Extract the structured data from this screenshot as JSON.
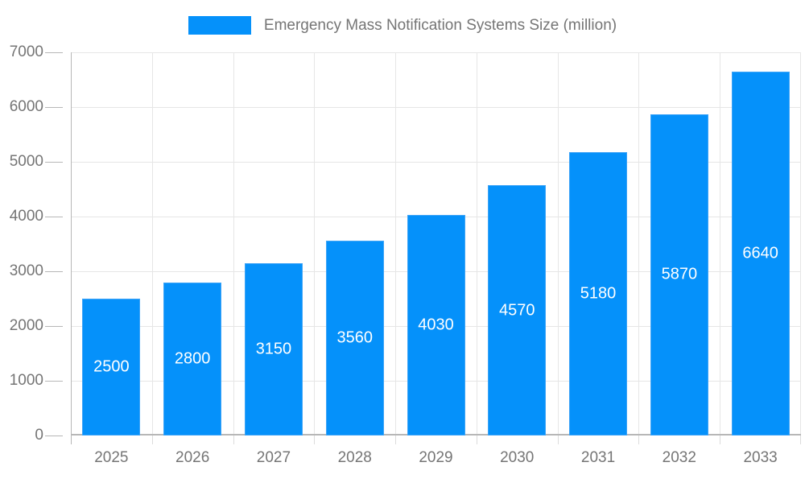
{
  "legend": {
    "label": "Emergency Mass Notification Systems Size (million)"
  },
  "chart_data": {
    "type": "bar",
    "title": "Emergency Mass Notification Systems Size (million)",
    "categories": [
      "2025",
      "2026",
      "2027",
      "2028",
      "2029",
      "2030",
      "2031",
      "2032",
      "2033"
    ],
    "values": [
      2500,
      2800,
      3150,
      3560,
      4030,
      4570,
      5180,
      5870,
      6640
    ],
    "value_labels": [
      "2500",
      "2800",
      "3150",
      "3560",
      "4030",
      "4570",
      "5180",
      "5870",
      "6640"
    ],
    "xlabel": "",
    "ylabel": "",
    "ylim": [
      0,
      7000
    ],
    "yticks": [
      0,
      1000,
      2000,
      3000,
      4000,
      5000,
      6000,
      7000
    ],
    "ytick_labels": [
      "0",
      "1000",
      "2000",
      "3000",
      "4000",
      "5000",
      "6000",
      "7000"
    ],
    "grid": true,
    "legend_position": "top",
    "value_label_position": "inside-center"
  },
  "colors": {
    "background": "#ffffff",
    "bar": "#0591fa",
    "bar_border": "#3ea4f7",
    "grid": "#e6e6e6",
    "axis": "#b7b7b7",
    "tick_text": "#757575",
    "legend_text": "#757575",
    "value_label_text": "#ffffff"
  }
}
